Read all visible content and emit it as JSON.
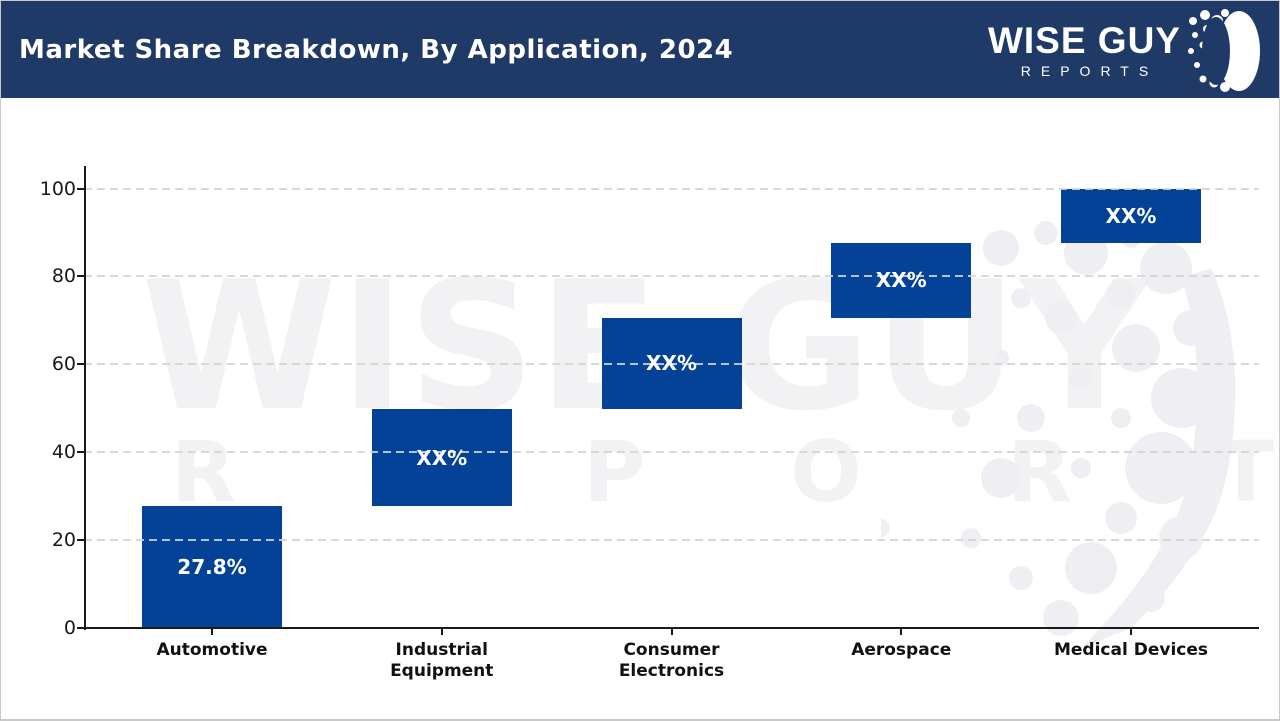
{
  "header": {
    "title": "Market Share Breakdown, By Application, 2024",
    "bg_color": "#1F3A66",
    "logo": {
      "line1": "WISE GUY",
      "line2": "REPORTS"
    }
  },
  "watermark": {
    "line1": "WISE GUY",
    "line2": "R E P O R T S"
  },
  "chart_data": {
    "type": "bar",
    "subtype": "waterfall-floating-bars",
    "title": "Market Share Breakdown, By Application, 2024",
    "categories": [
      "Automotive",
      "Industrial Equipment",
      "Consumer Electronics",
      "Aerospace",
      "Medical Devices"
    ],
    "category_lines": [
      [
        "Automotive"
      ],
      [
        "Industrial",
        "Equipment"
      ],
      [
        "Consumer",
        "Electronics"
      ],
      [
        "Aerospace"
      ],
      [
        "Medical Devices"
      ]
    ],
    "segments": [
      {
        "category": "Automotive",
        "start": 0,
        "end": 27.8,
        "label": "27.8%"
      },
      {
        "category": "Industrial Equipment",
        "start": 27.8,
        "end": 49.8,
        "label": "XX%"
      },
      {
        "category": "Consumer Electronics",
        "start": 49.8,
        "end": 70.6,
        "label": "XX%"
      },
      {
        "category": "Aerospace",
        "start": 70.6,
        "end": 87.7,
        "label": "XX%"
      },
      {
        "category": "Medical Devices",
        "start": 87.7,
        "end": 100,
        "label": "XX%"
      }
    ],
    "y_ticks": [
      0,
      20,
      40,
      60,
      80,
      100
    ],
    "ylim": [
      0,
      105
    ],
    "xlabel": "",
    "ylabel": "",
    "grid": true,
    "grid_style": "dashed",
    "legend": "none",
    "bar_color": "#044297",
    "value_label_color": "#ffffff",
    "grid_color": "#d4d4d4",
    "axis_color": "#1a1a1a"
  }
}
